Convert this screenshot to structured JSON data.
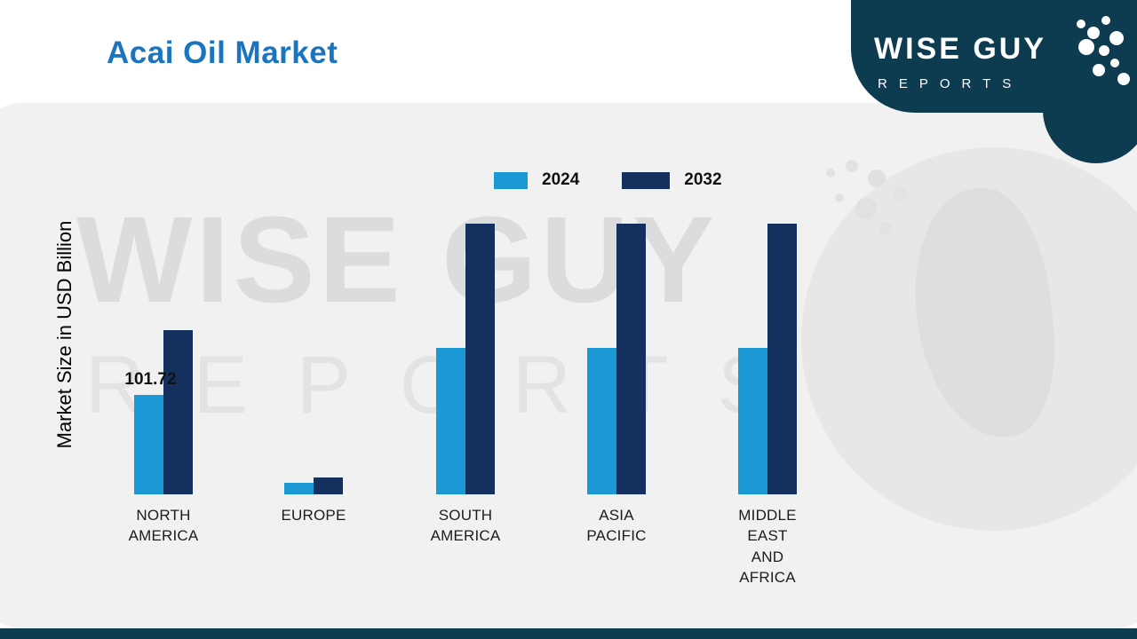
{
  "colors": {
    "accent_blue": "#1b74be",
    "teal_dark": "#0d3c50",
    "series_2024": "#1b99d5",
    "series_2032": "#14305f",
    "panel_gray": "#f1f1f1"
  },
  "logo": {
    "name": "WISE GUY",
    "sub": "REPORTS"
  },
  "watermark": {
    "line1": "WISE GUY",
    "line2": "REPORTS"
  },
  "chart_data": {
    "type": "bar",
    "title": "Acai Oil Market",
    "ylabel": "Market Size in USD Billion",
    "units": "USD Billion",
    "categories": [
      "NORTH\nAMERICA",
      "EUROPE",
      "SOUTH\nAMERICA",
      "ASIA\nPACIFIC",
      "MIDDLE\nEAST\nAND\nAFRICA"
    ],
    "series": [
      {
        "name": "2024",
        "color": "#1b99d5",
        "values": [
          101.72,
          12,
          150,
          150,
          150
        ]
      },
      {
        "name": "2032",
        "color": "#14305f",
        "values": [
          168,
          17.5,
          277,
          277,
          277
        ]
      }
    ],
    "value_labels": [
      {
        "series": "2024",
        "category_index": 0,
        "text": "101.72"
      }
    ],
    "ylim": [
      0,
      310
    ],
    "legend_position": "top-center",
    "grid": false
  }
}
